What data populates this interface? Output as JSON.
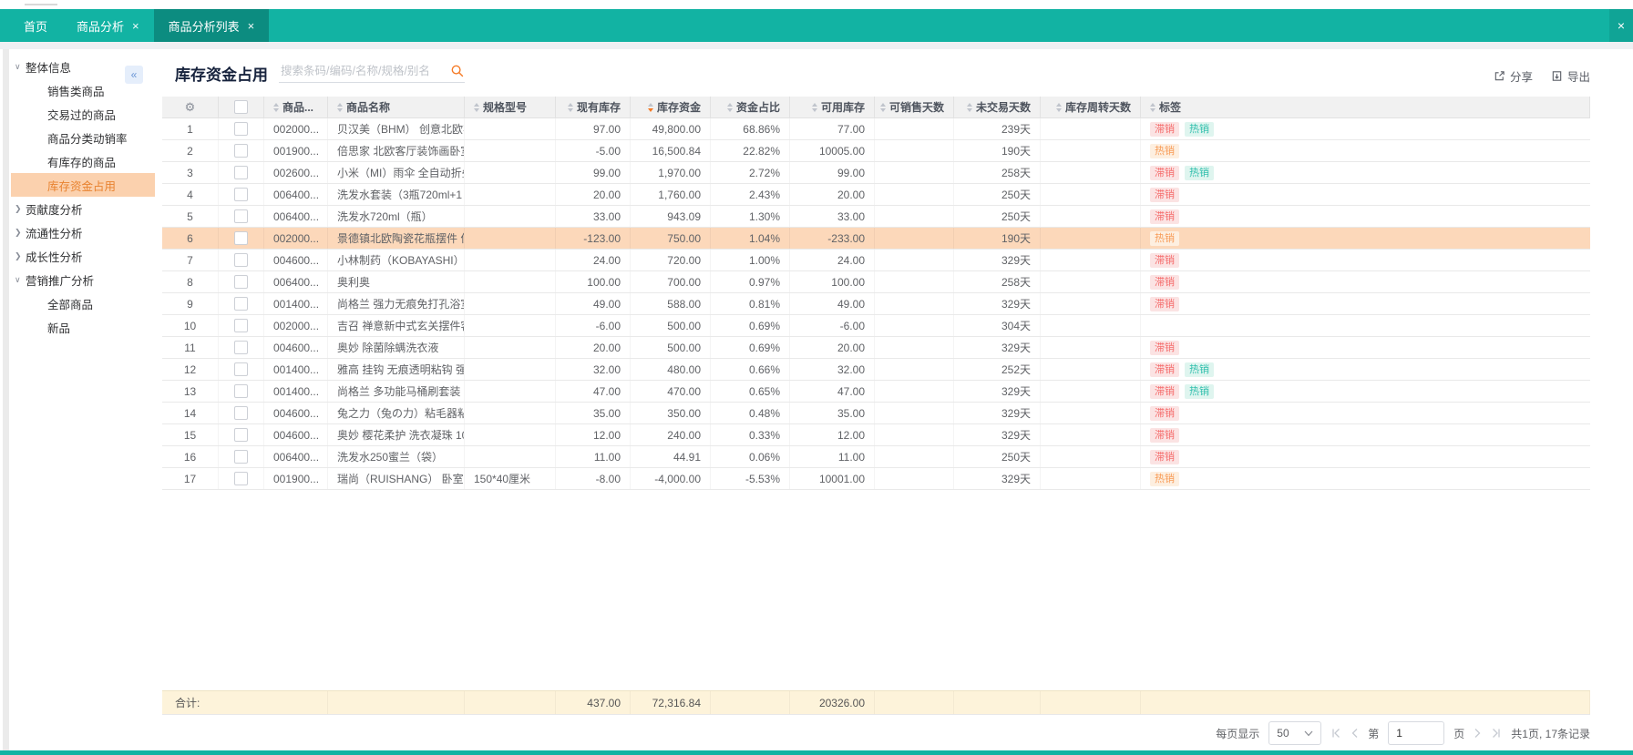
{
  "colors": {
    "teal": "#12b3a3",
    "teal-dark": "#0c8c80",
    "close-box": "#10a496",
    "accent-orange": "#f57a25",
    "row-highlight": "#fcd8ba",
    "sidebar-selected-bg": "#fbd1ae",
    "sidebar-selected-text": "#e8822f",
    "totals-bg": "#fdf3da",
    "tag-stagnant-bg": "#fbe3e3",
    "tag-stagnant-text": "#f56c6c",
    "tag-hot-teal-bg": "#dff5ef",
    "tag-hot-teal-text": "#30bfad",
    "tag-hot-orange-bg": "#fdefe0",
    "tag-hot-orange-text": "#f89b56"
  },
  "topbar": {
    "tabs": [
      {
        "label": "首页",
        "closable": false,
        "active": false
      },
      {
        "label": "商品分析",
        "closable": true,
        "active": false
      },
      {
        "label": "商品分析列表",
        "closable": true,
        "active": true
      }
    ],
    "close_label": "×"
  },
  "sidebar": {
    "collapse_icon": "«",
    "items": [
      {
        "label": "整体信息",
        "level": 0,
        "arrow": "∨",
        "selected": false
      },
      {
        "label": "销售类商品",
        "level": 1,
        "arrow": "",
        "selected": false
      },
      {
        "label": "交易过的商品",
        "level": 1,
        "arrow": "",
        "selected": false
      },
      {
        "label": "商品分类动销率",
        "level": 1,
        "arrow": "",
        "selected": false
      },
      {
        "label": "有库存的商品",
        "level": 1,
        "arrow": "",
        "selected": false
      },
      {
        "label": "库存资金占用",
        "level": 1,
        "arrow": "",
        "selected": true
      },
      {
        "label": "贡献度分析",
        "level": 0,
        "arrow": "❯",
        "selected": false
      },
      {
        "label": "流通性分析",
        "level": 0,
        "arrow": "❯",
        "selected": false
      },
      {
        "label": "成长性分析",
        "level": 0,
        "arrow": "❯",
        "selected": false
      },
      {
        "label": "营销推广分析",
        "level": 0,
        "arrow": "∨",
        "selected": false
      },
      {
        "label": "全部商品",
        "level": 1,
        "arrow": "",
        "selected": false
      },
      {
        "label": "新品",
        "level": 1,
        "arrow": "",
        "selected": false
      }
    ]
  },
  "header": {
    "title": "库存资金占用",
    "search_placeholder": "搜索条码/编码/名称/规格/别名",
    "share_label": "分享",
    "export_label": "导出"
  },
  "table": {
    "columns": [
      {
        "key": "code",
        "label": "商品...",
        "sorted": ""
      },
      {
        "key": "name",
        "label": "商品名称",
        "sorted": ""
      },
      {
        "key": "spec",
        "label": "规格型号",
        "sorted": ""
      },
      {
        "key": "stock",
        "label": "现有库存",
        "sorted": ""
      },
      {
        "key": "fund",
        "label": "库存资金",
        "sorted": "desc"
      },
      {
        "key": "ratio",
        "label": "资金占比",
        "sorted": ""
      },
      {
        "key": "avail",
        "label": "可用库存",
        "sorted": ""
      },
      {
        "key": "saledays",
        "label": "可销售天数",
        "sorted": ""
      },
      {
        "key": "notrade",
        "label": "未交易天数",
        "sorted": ""
      },
      {
        "key": "turnover",
        "label": "库存周转天数",
        "sorted": ""
      },
      {
        "key": "tags",
        "label": "标签",
        "sorted": ""
      }
    ],
    "rows": [
      {
        "num": "1",
        "code": "002000...",
        "name": "贝汉美（BHM） 创意北欧客",
        "spec": "",
        "stock": "97.00",
        "fund": "49,800.00",
        "ratio": "68.86%",
        "avail": "77.00",
        "saledays": "",
        "notrade": "239天",
        "turnover": "",
        "highlight": false,
        "tags": [
          {
            "text": "滞销",
            "type": "stagnant"
          },
          {
            "text": "热销",
            "type": "hot-teal"
          }
        ]
      },
      {
        "num": "2",
        "code": "001900...",
        "name": "倍思家 北欧客厅装饰画卧室",
        "spec": "",
        "stock": "-5.00",
        "fund": "16,500.84",
        "ratio": "22.82%",
        "avail": "10005.00",
        "saledays": "",
        "notrade": "190天",
        "turnover": "",
        "highlight": false,
        "tags": [
          {
            "text": "热销",
            "type": "hot-orange"
          }
        ]
      },
      {
        "num": "3",
        "code": "002600...",
        "name": "小米（MI）雨伞 全自动折叠",
        "spec": "",
        "stock": "99.00",
        "fund": "1,970.00",
        "ratio": "2.72%",
        "avail": "99.00",
        "saledays": "",
        "notrade": "258天",
        "turnover": "",
        "highlight": false,
        "tags": [
          {
            "text": "滞销",
            "type": "stagnant"
          },
          {
            "text": "热销",
            "type": "hot-teal"
          }
        ]
      },
      {
        "num": "4",
        "code": "006400...",
        "name": "洗发水套装（3瓶720ml+1",
        "spec": "",
        "stock": "20.00",
        "fund": "1,760.00",
        "ratio": "2.43%",
        "avail": "20.00",
        "saledays": "",
        "notrade": "250天",
        "turnover": "",
        "highlight": false,
        "tags": [
          {
            "text": "滞销",
            "type": "stagnant"
          }
        ]
      },
      {
        "num": "5",
        "code": "006400...",
        "name": "洗发水720ml（瓶）",
        "spec": "",
        "stock": "33.00",
        "fund": "943.09",
        "ratio": "1.30%",
        "avail": "33.00",
        "saledays": "",
        "notrade": "250天",
        "turnover": "",
        "highlight": false,
        "tags": [
          {
            "text": "滞销",
            "type": "stagnant"
          }
        ]
      },
      {
        "num": "6",
        "code": "002000...",
        "name": "景德镇北欧陶瓷花瓶摆件 仿",
        "spec": "",
        "stock": "-123.00",
        "fund": "750.00",
        "ratio": "1.04%",
        "avail": "-233.00",
        "saledays": "",
        "notrade": "190天",
        "turnover": "",
        "highlight": true,
        "tags": [
          {
            "text": "热销",
            "type": "hot-orange"
          }
        ]
      },
      {
        "num": "7",
        "code": "004600...",
        "name": "小林制药（KOBAYASHI）日",
        "spec": "",
        "stock": "24.00",
        "fund": "720.00",
        "ratio": "1.00%",
        "avail": "24.00",
        "saledays": "",
        "notrade": "329天",
        "turnover": "",
        "highlight": false,
        "tags": [
          {
            "text": "滞销",
            "type": "stagnant"
          }
        ]
      },
      {
        "num": "8",
        "code": "006400...",
        "name": "奥利奥",
        "spec": "",
        "stock": "100.00",
        "fund": "700.00",
        "ratio": "0.97%",
        "avail": "100.00",
        "saledays": "",
        "notrade": "258天",
        "turnover": "",
        "highlight": false,
        "tags": [
          {
            "text": "滞销",
            "type": "stagnant"
          }
        ]
      },
      {
        "num": "9",
        "code": "001400...",
        "name": "尚格兰 强力无痕免打孔浴室",
        "spec": "",
        "stock": "49.00",
        "fund": "588.00",
        "ratio": "0.81%",
        "avail": "49.00",
        "saledays": "",
        "notrade": "329天",
        "turnover": "",
        "highlight": false,
        "tags": [
          {
            "text": "滞销",
            "type": "stagnant"
          }
        ]
      },
      {
        "num": "10",
        "code": "002000...",
        "name": "吉召 禅意新中式玄关摆件客",
        "spec": "",
        "stock": "-6.00",
        "fund": "500.00",
        "ratio": "0.69%",
        "avail": "-6.00",
        "saledays": "",
        "notrade": "304天",
        "turnover": "",
        "highlight": false,
        "tags": []
      },
      {
        "num": "11",
        "code": "004600...",
        "name": "奥妙 除菌除螨洗衣液",
        "spec": "",
        "stock": "20.00",
        "fund": "500.00",
        "ratio": "0.69%",
        "avail": "20.00",
        "saledays": "",
        "notrade": "329天",
        "turnover": "",
        "highlight": false,
        "tags": [
          {
            "text": "滞销",
            "type": "stagnant"
          }
        ]
      },
      {
        "num": "12",
        "code": "001400...",
        "name": "雅高 挂钩 无痕透明粘钩 强",
        "spec": "",
        "stock": "32.00",
        "fund": "480.00",
        "ratio": "0.66%",
        "avail": "32.00",
        "saledays": "",
        "notrade": "252天",
        "turnover": "",
        "highlight": false,
        "tags": [
          {
            "text": "滞销",
            "type": "stagnant"
          },
          {
            "text": "热销",
            "type": "hot-teal"
          }
        ]
      },
      {
        "num": "13",
        "code": "001400...",
        "name": "尚格兰 多功能马桶刷套装 刷",
        "spec": "",
        "stock": "47.00",
        "fund": "470.00",
        "ratio": "0.65%",
        "avail": "47.00",
        "saledays": "",
        "notrade": "329天",
        "turnover": "",
        "highlight": false,
        "tags": [
          {
            "text": "滞销",
            "type": "stagnant"
          },
          {
            "text": "热销",
            "type": "hot-teal"
          }
        ]
      },
      {
        "num": "14",
        "code": "004600...",
        "name": "兔之力（兔の力）粘毛器粘",
        "spec": "",
        "stock": "35.00",
        "fund": "350.00",
        "ratio": "0.48%",
        "avail": "35.00",
        "saledays": "",
        "notrade": "329天",
        "turnover": "",
        "highlight": false,
        "tags": [
          {
            "text": "滞销",
            "type": "stagnant"
          }
        ]
      },
      {
        "num": "15",
        "code": "004600...",
        "name": "奥妙 樱花柔护 洗衣凝珠 10",
        "spec": "",
        "stock": "12.00",
        "fund": "240.00",
        "ratio": "0.33%",
        "avail": "12.00",
        "saledays": "",
        "notrade": "329天",
        "turnover": "",
        "highlight": false,
        "tags": [
          {
            "text": "滞销",
            "type": "stagnant"
          }
        ]
      },
      {
        "num": "16",
        "code": "006400...",
        "name": "洗发水250蜜兰（袋）",
        "spec": "",
        "stock": "11.00",
        "fund": "44.91",
        "ratio": "0.06%",
        "avail": "11.00",
        "saledays": "",
        "notrade": "250天",
        "turnover": "",
        "highlight": false,
        "tags": [
          {
            "text": "滞销",
            "type": "stagnant"
          }
        ]
      },
      {
        "num": "17",
        "code": "001900...",
        "name": "瑞尚（RUISHANG） 卧室浅",
        "spec": "150*40厘米",
        "stock": "-8.00",
        "fund": "-4,000.00",
        "ratio": "-5.53%",
        "avail": "10001.00",
        "saledays": "",
        "notrade": "329天",
        "turnover": "",
        "highlight": false,
        "tags": [
          {
            "text": "热销",
            "type": "hot-orange"
          }
        ]
      }
    ],
    "totals": {
      "label": "合计:",
      "values": {
        "stock": "437.00",
        "fund": "72,316.84",
        "avail": "20326.00"
      }
    }
  },
  "pagination": {
    "page_size_label": "每页显示",
    "page_size": "50",
    "page_prefix": "第",
    "current_page": "1",
    "page_suffix": "页",
    "summary": "共1页, 17条记录"
  }
}
